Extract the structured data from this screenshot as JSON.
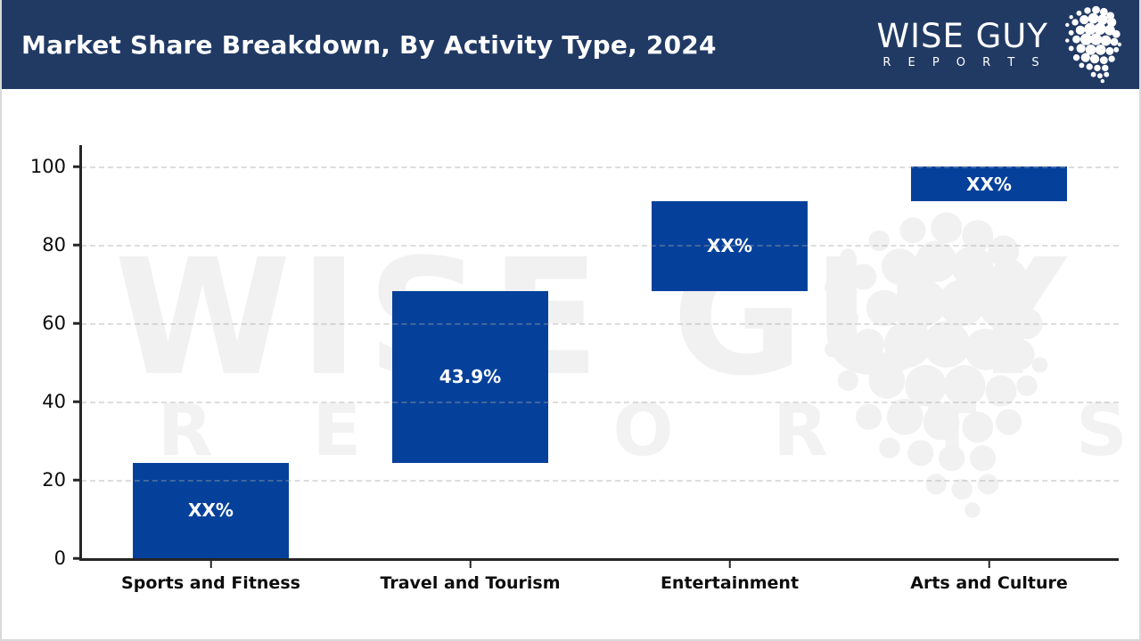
{
  "header": {
    "title": "Market Share Breakdown, By Activity Type, 2024",
    "bg_color": "#213a64",
    "logo": {
      "line1": "WISE GUY",
      "line2": "R E P O R T S"
    }
  },
  "watermark": {
    "line1": "WISE GUY",
    "line2": "R E P O R T S"
  },
  "chart_data": {
    "type": "bar",
    "subtype": "waterfall",
    "title": "Market Share Breakdown, By Activity Type, 2024",
    "categories": [
      "Sports and Fitness",
      "Travel and Tourism",
      "Entertainment",
      "Arts and Culture"
    ],
    "bars": [
      {
        "category": "Sports and Fitness",
        "start": 0,
        "end": 24.4,
        "value": 24.4,
        "label": "XX%"
      },
      {
        "category": "Travel and Tourism",
        "start": 24.4,
        "end": 68.3,
        "value": 43.9,
        "label": "43.9%"
      },
      {
        "category": "Entertainment",
        "start": 68.3,
        "end": 91.2,
        "value": 22.9,
        "label": "XX%"
      },
      {
        "category": "Arts and Culture",
        "start": 91.2,
        "end": 100,
        "value": 8.8,
        "label": "XX%"
      }
    ],
    "xlabel": "",
    "ylabel": "",
    "y_ticks": [
      0,
      20,
      40,
      60,
      80,
      100
    ],
    "ylim": [
      0,
      105.5
    ],
    "grid": "horizontal-dashed",
    "legend": false,
    "bar_color": "#05419b",
    "bar_width_frac": 0.6,
    "axis_color": "#262626"
  }
}
